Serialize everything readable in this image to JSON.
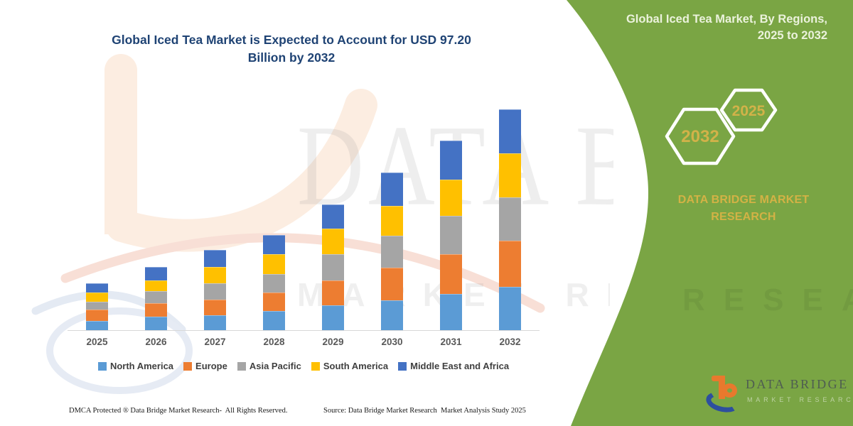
{
  "header": {
    "title_line1": "Global Iced Tea Market is Expected to Account for USD 97.20",
    "title_line2": "Billion by 2032"
  },
  "chart_data": {
    "type": "bar",
    "stacked": true,
    "title": "Global Iced Tea Market is Expected to Account for USD 97.20 Billion by 2032",
    "units": "USD Billion",
    "xlabel": "",
    "ylabel": "",
    "ylim": [
      0,
      100
    ],
    "grid": false,
    "y_axis_visible": false,
    "legend_position": "bottom",
    "categories": [
      "2025",
      "2026",
      "2027",
      "2028",
      "2029",
      "2030",
      "2031",
      "2032"
    ],
    "series": [
      {
        "name": "North America",
        "color": "#5B9BD5",
        "values": [
          4.1,
          6.1,
          6.7,
          8.5,
          10.9,
          13.0,
          16.1,
          19.1
        ]
      },
      {
        "name": "Europe",
        "color": "#ED7D31",
        "values": [
          5.0,
          5.8,
          6.8,
          8.0,
          10.9,
          14.6,
          17.5,
          20.2
        ]
      },
      {
        "name": "Asia Pacific",
        "color": "#A5A5A5",
        "values": [
          3.3,
          5.4,
          7.1,
          8.1,
          11.5,
          14.1,
          16.7,
          19.1
        ]
      },
      {
        "name": "South America",
        "color": "#FFC000",
        "values": [
          4.2,
          4.7,
          7.3,
          8.9,
          11.5,
          13.0,
          16.0,
          19.3
        ]
      },
      {
        "name": "Middle East and Africa",
        "color": "#4472C4",
        "values": [
          4.2,
          5.7,
          7.3,
          8.3,
          10.6,
          14.6,
          17.3,
          19.5
        ]
      }
    ],
    "totals": [
      20.8,
      27.7,
      35.2,
      41.8,
      55.4,
      69.3,
      83.6,
      97.2
    ]
  },
  "side_panel": {
    "title_line1": "Global Iced Tea Market, By Regions,",
    "title_line2": "2025 to 2032",
    "hex_large_label": "2032",
    "hex_small_label": "2025",
    "brand": "DATA BRIDGE MARKET RESEARCH",
    "watermark_text": "RESEARCH",
    "bg_color": "#7AA544",
    "accent_gold": "#D2B247"
  },
  "logo": {
    "name": "DATA BRIDGE",
    "subtitle": "MARKET RESEARCH"
  },
  "footer": {
    "dmca": "DMCA Protected ® Data Bridge Market Research-  All Rights Reserved.",
    "source": "Source: Data Bridge Market Research  Market Analysis Study 2025"
  },
  "watermark": {
    "big_text": "DATA BRI",
    "sub_text": "MARKET RESE"
  }
}
